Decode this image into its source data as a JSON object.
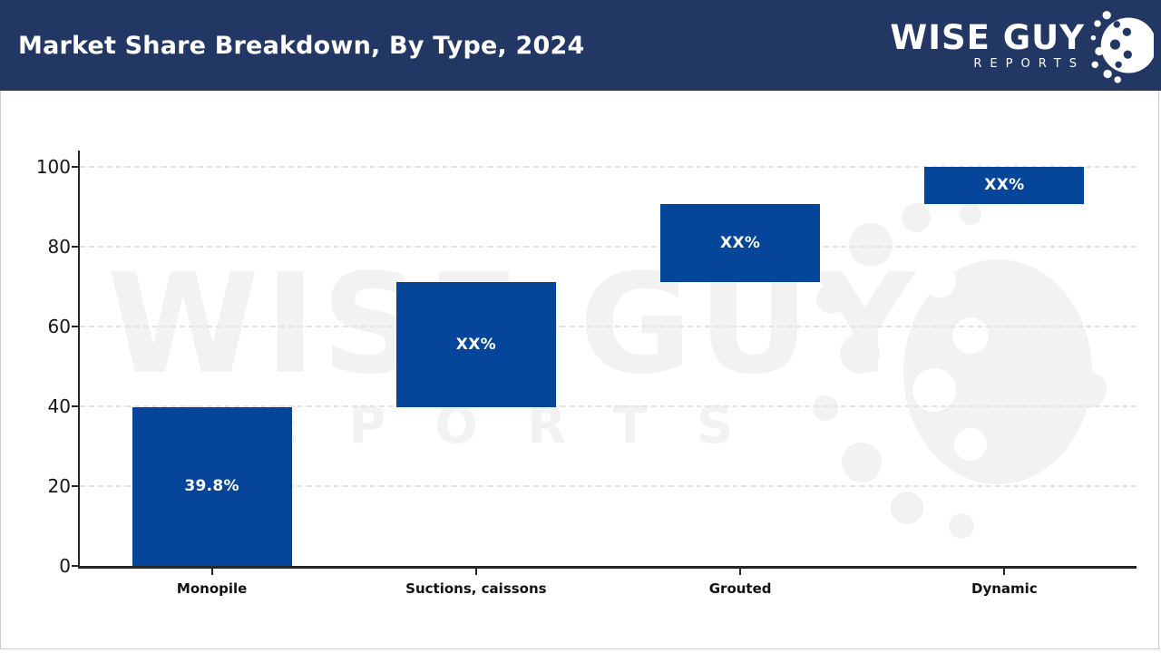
{
  "header": {
    "title": "Market Share Breakdown, By Type, 2024",
    "bg_color": "#233765",
    "logo": {
      "line1": "WISE GUY",
      "line2": "REPORTS"
    }
  },
  "watermark": {
    "line1": "WISE GUY",
    "line2": "REPORTS"
  },
  "chart_data": {
    "type": "bar",
    "subtype": "waterfall",
    "title": "Market Share Breakdown, By Type, 2024",
    "categories": [
      "Monopile",
      "Suctions, caissons",
      "Grouted",
      "Dynamic"
    ],
    "bars": [
      {
        "category": "Monopile",
        "start": 0,
        "end": 39.8,
        "label": "39.8%"
      },
      {
        "category": "Suctions, caissons",
        "start": 39.8,
        "end": 71.2,
        "label": "XX%"
      },
      {
        "category": "Grouted",
        "start": 71.2,
        "end": 90.7,
        "label": "XX%"
      },
      {
        "category": "Dynamic",
        "start": 90.7,
        "end": 100,
        "label": "XX%"
      }
    ],
    "xlabel": "",
    "ylabel": "",
    "yticks": [
      0,
      20,
      40,
      60,
      80,
      100
    ],
    "ylim": [
      0,
      104
    ],
    "grid": "horizontal-dashed",
    "legend": "none",
    "bar_color": "#05469B",
    "bar_label_color": "#ffffff"
  }
}
